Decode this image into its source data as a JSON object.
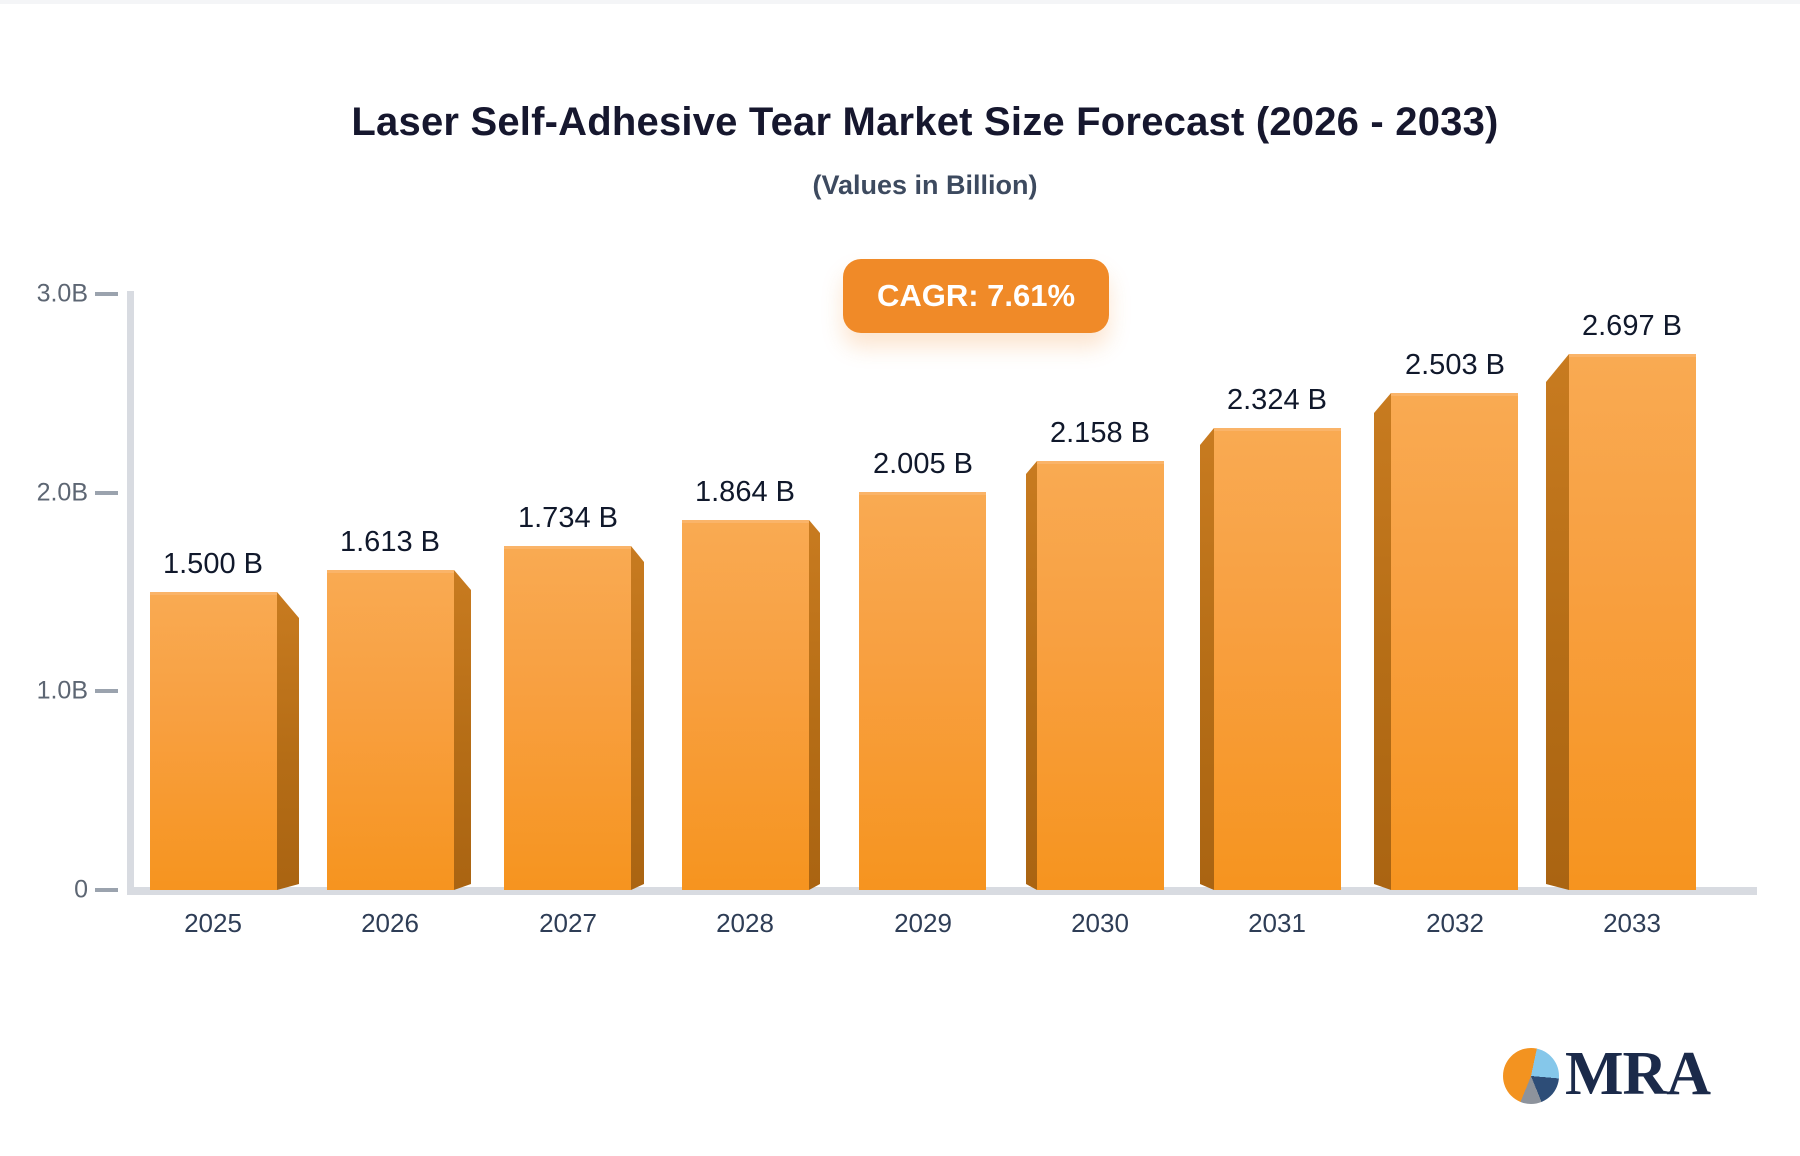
{
  "chart_data": {
    "type": "bar",
    "title": "Laser Self-Adhesive Tear Market Size Forecast (2026 - 2033)",
    "subtitle": "(Values in Billion)",
    "badge_label": "CAGR: 7.61%",
    "categories": [
      "2025",
      "2026",
      "2027",
      "2028",
      "2029",
      "2030",
      "2031",
      "2032",
      "2033"
    ],
    "values": [
      1.5,
      1.613,
      1.734,
      1.864,
      2.005,
      2.158,
      2.324,
      2.503,
      2.697
    ],
    "value_labels": [
      "1.500 B",
      "1.613 B",
      "1.734 B",
      "1.864 B",
      "2.005 B",
      "2.158 B",
      "2.324 B",
      "2.503 B",
      "2.697 B"
    ],
    "y_ticks": [
      {
        "label": "3.0B",
        "value": 3
      },
      {
        "label": "2.0B",
        "value": 2
      },
      {
        "label": "1.0B",
        "value": 1
      },
      {
        "label": "0",
        "value": 0
      }
    ],
    "ylim": [
      0,
      3
    ],
    "xlabel": "",
    "ylabel": "",
    "grid": false,
    "legend": "none",
    "bar_style": "3d-perspective"
  },
  "logo": {
    "text": "MRA"
  },
  "colors": {
    "bar_face_top": "#f9aa52",
    "bar_face_bottom": "#f6941f",
    "bar_side": "#b56d16",
    "badge_background": "#f08a28",
    "badge_text": "#ffffff",
    "axis_line": "#d8dbe1",
    "tick_label": "#5d6673",
    "year_label": "#2e3d56",
    "value_label": "#10182b",
    "title_text": "#16172e",
    "subtitle_text": "#3d4a5f",
    "logo_navy": "#1b2a4a",
    "logo_lightblue": "#85c7ea",
    "logo_gray": "#8d939c",
    "logo_orange": "#f39320"
  }
}
